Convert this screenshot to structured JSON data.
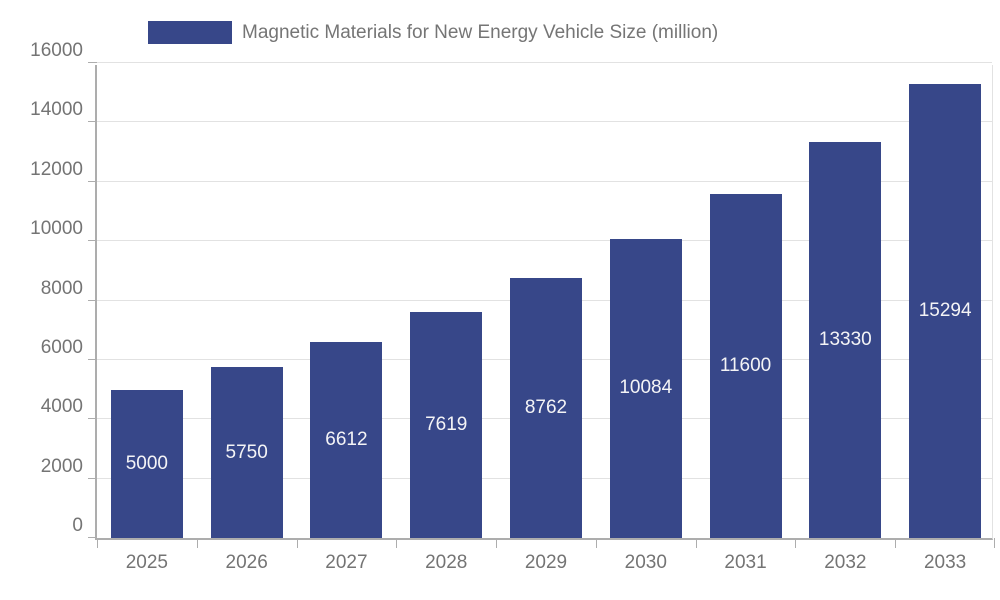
{
  "legend": {
    "label": "Magnetic Materials for New Energy Vehicle Size (million)",
    "swatch_color": "#374789"
  },
  "chart_data": {
    "type": "bar",
    "title": "Magnetic Materials for New Energy Vehicle Size (million)",
    "categories": [
      "2025",
      "2026",
      "2027",
      "2028",
      "2029",
      "2030",
      "2031",
      "2032",
      "2033"
    ],
    "values": [
      5000,
      5750,
      6612,
      7619,
      8762,
      10084,
      11600,
      13330,
      15294
    ],
    "xlabel": "",
    "ylabel": "",
    "ylim": [
      0,
      16000
    ],
    "yticks": [
      0,
      2000,
      4000,
      6000,
      8000,
      10000,
      12000,
      14000,
      16000
    ],
    "grid": true,
    "legend_position": "top",
    "bar_color": "#374789",
    "value_label_color": "#f4f4f6",
    "axis_text_color": "#747474",
    "axis_line_color": "#adadad",
    "gridline_color": "#e2e2e2"
  }
}
